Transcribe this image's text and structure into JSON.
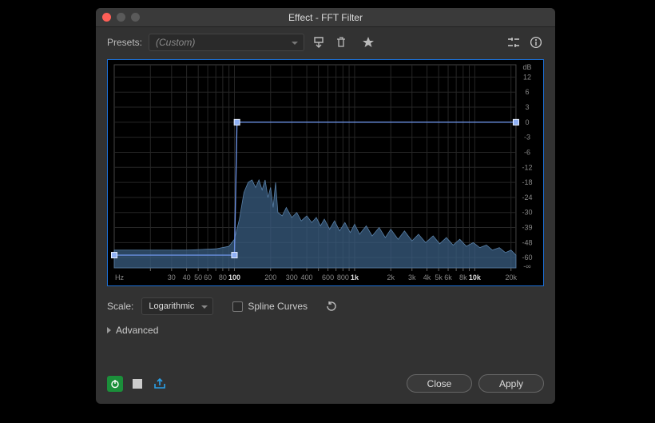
{
  "window": {
    "title": "Effect - FFT Filter",
    "traffic_lights": {
      "close": "#ff5f57",
      "min": "#5a5a5a",
      "max": "#5a5a5a"
    }
  },
  "toolbar": {
    "presets_label": "Presets:",
    "preset_value": "(Custom)"
  },
  "chart": {
    "type": "spectrum-filter",
    "background_color": "#000000",
    "grid_color": "#262626",
    "axis_text_color": "#888888",
    "spectrum_fill": "#3a5e82",
    "spectrum_stroke": "#587fa6",
    "curve_color": "#6a8fe0",
    "handle_fill": "#8fb0f5",
    "handle_stroke": "#e8f0ff",
    "x_scale": "log",
    "x_min_hz": 10,
    "x_max_hz": 22000,
    "x_ticks": [
      {
        "v": 20,
        "label": ""
      },
      {
        "v": 30,
        "label": "30"
      },
      {
        "v": 40,
        "label": "40"
      },
      {
        "v": 50,
        "label": "50"
      },
      {
        "v": 60,
        "label": "60"
      },
      {
        "v": 70,
        "label": ""
      },
      {
        "v": 80,
        "label": "80"
      },
      {
        "v": 90,
        "label": ""
      },
      {
        "v": 100,
        "label": "100",
        "bold": true
      },
      {
        "v": 200,
        "label": "200"
      },
      {
        "v": 300,
        "label": "300"
      },
      {
        "v": 400,
        "label": "400"
      },
      {
        "v": 500,
        "label": ""
      },
      {
        "v": 600,
        "label": "600"
      },
      {
        "v": 700,
        "label": ""
      },
      {
        "v": 800,
        "label": "800"
      },
      {
        "v": 900,
        "label": ""
      },
      {
        "v": 1000,
        "label": "1k",
        "bold": true
      },
      {
        "v": 2000,
        "label": "2k"
      },
      {
        "v": 3000,
        "label": "3k"
      },
      {
        "v": 4000,
        "label": "4k"
      },
      {
        "v": 5000,
        "label": "5k"
      },
      {
        "v": 6000,
        "label": "6k"
      },
      {
        "v": 7000,
        "label": ""
      },
      {
        "v": 8000,
        "label": "8k"
      },
      {
        "v": 9000,
        "label": ""
      },
      {
        "v": 10000,
        "label": "10k",
        "bold": true
      },
      {
        "v": 20000,
        "label": "20k"
      }
    ],
    "x_unit_label": "Hz",
    "y_unit_label": "dB",
    "y_min_db": -60,
    "y_max_db": 15,
    "y_ticks": [
      12,
      6,
      3,
      0,
      -3,
      -6,
      -12,
      -18,
      -24,
      -30,
      -39,
      -48,
      -60
    ],
    "y_inf_label": "-∞",
    "filter_curve": [
      {
        "hz": 10,
        "db": -58
      },
      {
        "hz": 100,
        "db": -58
      },
      {
        "hz": 105,
        "db": 0
      },
      {
        "hz": 22000,
        "db": 0
      }
    ],
    "handles": [
      {
        "hz": 10,
        "db": -58
      },
      {
        "hz": 100,
        "db": -58
      },
      {
        "hz": 105,
        "db": 0
      },
      {
        "hz": 22000,
        "db": 0
      }
    ],
    "spectrum": [
      {
        "hz": 10,
        "db": -54
      },
      {
        "hz": 40,
        "db": -54
      },
      {
        "hz": 70,
        "db": -53
      },
      {
        "hz": 90,
        "db": -51
      },
      {
        "hz": 100,
        "db": -46
      },
      {
        "hz": 110,
        "db": -34
      },
      {
        "hz": 120,
        "db": -22
      },
      {
        "hz": 130,
        "db": -18
      },
      {
        "hz": 140,
        "db": -17
      },
      {
        "hz": 150,
        "db": -20
      },
      {
        "hz": 160,
        "db": -17
      },
      {
        "hz": 170,
        "db": -21
      },
      {
        "hz": 180,
        "db": -17
      },
      {
        "hz": 190,
        "db": -24
      },
      {
        "hz": 200,
        "db": -20
      },
      {
        "hz": 210,
        "db": -28
      },
      {
        "hz": 220,
        "db": -18
      },
      {
        "hz": 230,
        "db": -30
      },
      {
        "hz": 250,
        "db": -32
      },
      {
        "hz": 270,
        "db": -28
      },
      {
        "hz": 300,
        "db": -33
      },
      {
        "hz": 330,
        "db": -30
      },
      {
        "hz": 360,
        "db": -35
      },
      {
        "hz": 400,
        "db": -32
      },
      {
        "hz": 440,
        "db": -36
      },
      {
        "hz": 480,
        "db": -33
      },
      {
        "hz": 520,
        "db": -38
      },
      {
        "hz": 560,
        "db": -34
      },
      {
        "hz": 620,
        "db": -40
      },
      {
        "hz": 680,
        "db": -35
      },
      {
        "hz": 750,
        "db": -41
      },
      {
        "hz": 830,
        "db": -36
      },
      {
        "hz": 920,
        "db": -42
      },
      {
        "hz": 1000,
        "db": -37
      },
      {
        "hz": 1100,
        "db": -43
      },
      {
        "hz": 1250,
        "db": -38
      },
      {
        "hz": 1400,
        "db": -44
      },
      {
        "hz": 1600,
        "db": -39
      },
      {
        "hz": 1800,
        "db": -45
      },
      {
        "hz": 2000,
        "db": -40
      },
      {
        "hz": 2300,
        "db": -46
      },
      {
        "hz": 2600,
        "db": -41
      },
      {
        "hz": 3000,
        "db": -47
      },
      {
        "hz": 3400,
        "db": -43
      },
      {
        "hz": 3900,
        "db": -48
      },
      {
        "hz": 4500,
        "db": -44
      },
      {
        "hz": 5100,
        "db": -49
      },
      {
        "hz": 5800,
        "db": -45
      },
      {
        "hz": 6600,
        "db": -50
      },
      {
        "hz": 7500,
        "db": -46
      },
      {
        "hz": 8500,
        "db": -51
      },
      {
        "hz": 9700,
        "db": -48
      },
      {
        "hz": 11000,
        "db": -52
      },
      {
        "hz": 12500,
        "db": -50
      },
      {
        "hz": 14000,
        "db": -54
      },
      {
        "hz": 16000,
        "db": -52
      },
      {
        "hz": 18000,
        "db": -56
      },
      {
        "hz": 20000,
        "db": -54
      },
      {
        "hz": 22000,
        "db": -58
      }
    ]
  },
  "controls": {
    "scale_label": "Scale:",
    "scale_value": "Logarithmic",
    "spline_label": "Spline Curves",
    "spline_checked": false,
    "advanced_label": "Advanced"
  },
  "footer": {
    "close_label": "Close",
    "apply_label": "Apply"
  }
}
